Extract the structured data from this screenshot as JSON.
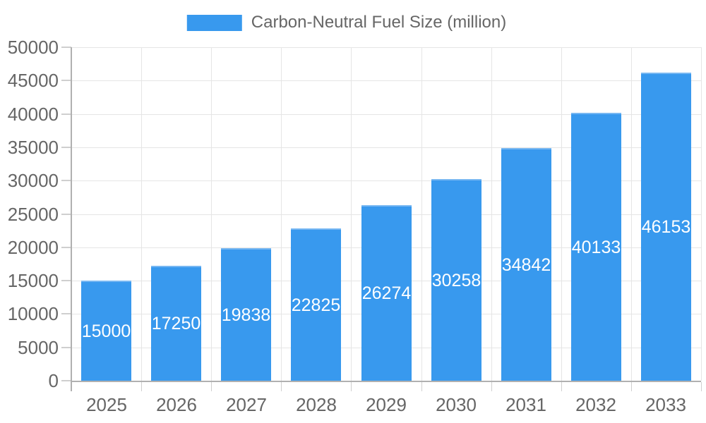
{
  "chart_data": {
    "type": "bar",
    "title": "Carbon-Neutral Fuel Size (million)",
    "categories": [
      "2025",
      "2026",
      "2027",
      "2028",
      "2029",
      "2030",
      "2031",
      "2032",
      "2033"
    ],
    "series": [
      {
        "name": "Carbon-Neutral Fuel Size (million)",
        "values": [
          15000,
          17250,
          19838,
          22825,
          26274,
          30258,
          34842,
          40133,
          46153
        ]
      }
    ],
    "data_labels": [
      "15000",
      "17250",
      "19838",
      "22825",
      "26274",
      "30258",
      "34842",
      "40133",
      "46153"
    ],
    "xlabel": "",
    "ylabel": "",
    "ylim": [
      0,
      50000
    ],
    "y_ticks": [
      0,
      5000,
      10000,
      15000,
      20000,
      25000,
      30000,
      35000,
      40000,
      45000,
      50000
    ],
    "y_tick_labels": [
      "0",
      "5000",
      "10000",
      "15000",
      "20000",
      "25000",
      "30000",
      "35000",
      "40000",
      "45000",
      "50000"
    ],
    "grid": true,
    "legend_position": "top-center",
    "colors": {
      "bar_fill": "#3899ee",
      "bar_top_border": "#77b7f2",
      "data_label_text": "#ffffff",
      "axis_text": "#666666",
      "gridline": "#e5e5e5",
      "tick_mark": "#cfcfcf",
      "axis_line": "#b0b0b0"
    }
  },
  "legend": {
    "label": "Carbon-Neutral Fuel Size (million)",
    "swatch_color": "#3899ee"
  }
}
